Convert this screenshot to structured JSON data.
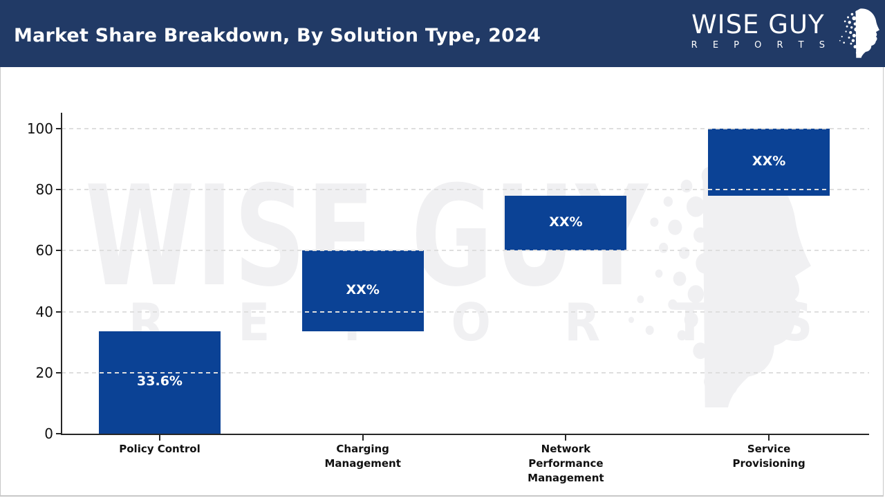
{
  "header": {
    "title": "Market Share Breakdown, By Solution Type, 2024",
    "background_color": "#213a66",
    "logo": {
      "line1": "WISE GUY",
      "line2": "R E P O R T S"
    }
  },
  "watermark": {
    "line1": "WISE GUY",
    "line2": "R E P O R T S"
  },
  "chart_data": {
    "type": "bar",
    "subtype": "waterfall",
    "title": "Market Share Breakdown, By Solution Type, 2024",
    "categories": [
      "Policy Control",
      "Charging Management",
      "Network Performance Management",
      "Service Provisioning"
    ],
    "category_label_lines": [
      [
        "Policy Control"
      ],
      [
        "Charging",
        "Management"
      ],
      [
        "Network",
        "Performance",
        "Management"
      ],
      [
        "Service",
        "Provisioning"
      ]
    ],
    "bars": [
      {
        "category": "Policy Control",
        "start": 0,
        "end": 33.6,
        "label": "33.6%"
      },
      {
        "category": "Charging Management",
        "start": 33.6,
        "end": 60,
        "label": "XX%"
      },
      {
        "category": "Network Performance Management",
        "start": 60,
        "end": 78,
        "label": "XX%"
      },
      {
        "category": "Service Provisioning",
        "start": 78,
        "end": 100,
        "label": "XX%"
      }
    ],
    "xlabel": "",
    "ylabel": "",
    "yticks": [
      0,
      20,
      40,
      60,
      80,
      100
    ],
    "ylim": [
      0,
      105
    ],
    "grid": "horizontal-dashed",
    "legend": null,
    "bar_color": "#0b4295",
    "bar_label_color": "#ffffff",
    "axis_color": "#262626",
    "gridline_color": "#dedede"
  }
}
